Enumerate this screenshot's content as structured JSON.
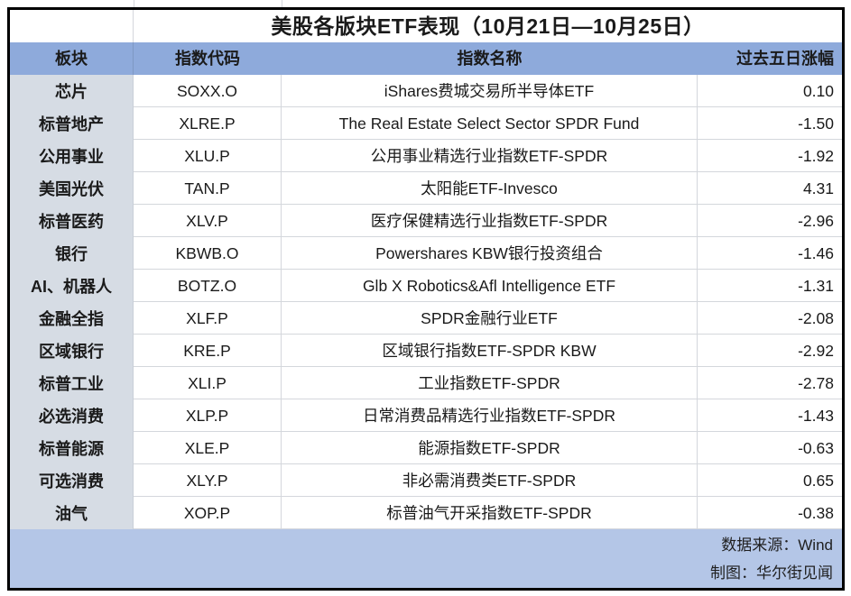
{
  "title": "美股各版块ETF表现（10月21日—10月25日）",
  "chart_data": {
    "type": "table",
    "title": "美股各版块ETF表现（10月21日—10月25日）",
    "columns": [
      "板块",
      "指数代码",
      "指数名称",
      "过去五日涨幅"
    ],
    "rows": [
      {
        "sector": "芯片",
        "code": "SOXX.O",
        "name": "iShares费城交易所半导体ETF",
        "change": "0.10"
      },
      {
        "sector": "标普地产",
        "code": "XLRE.P",
        "name": "The Real Estate Select Sector SPDR Fund",
        "change": "-1.50"
      },
      {
        "sector": "公用事业",
        "code": "XLU.P",
        "name": "公用事业精选行业指数ETF-SPDR",
        "change": "-1.92"
      },
      {
        "sector": "美国光伏",
        "code": "TAN.P",
        "name": "太阳能ETF-Invesco",
        "change": "4.31"
      },
      {
        "sector": "标普医药",
        "code": "XLV.P",
        "name": "医疗保健精选行业指数ETF-SPDR",
        "change": "-2.96"
      },
      {
        "sector": "银行",
        "code": "KBWB.O",
        "name": "Powershares KBW银行投资组合",
        "change": "-1.46"
      },
      {
        "sector": "AI、机器人",
        "code": "BOTZ.O",
        "name": "Glb X Robotics&Afl Intelligence ETF",
        "change": "-1.31"
      },
      {
        "sector": "金融全指",
        "code": "XLF.P",
        "name": "SPDR金融行业ETF",
        "change": "-2.08"
      },
      {
        "sector": "区域银行",
        "code": "KRE.P",
        "name": "区域银行指数ETF-SPDR KBW",
        "change": "-2.92"
      },
      {
        "sector": "标普工业",
        "code": "XLI.P",
        "name": "工业指数ETF-SPDR",
        "change": "-2.78"
      },
      {
        "sector": "必选消费",
        "code": "XLP.P",
        "name": "日常消费品精选行业指数ETF-SPDR",
        "change": "-1.43"
      },
      {
        "sector": "标普能源",
        "code": "XLE.P",
        "name": "能源指数ETF-SPDR",
        "change": "-0.63"
      },
      {
        "sector": "可选消费",
        "code": "XLY.P",
        "name": "非必需消费类ETF-SPDR",
        "change": "0.65"
      },
      {
        "sector": "油气",
        "code": "XOP.P",
        "name": "标普油气开采指数ETF-SPDR",
        "change": "-0.38"
      }
    ]
  },
  "footer": {
    "source": "数据来源：Wind",
    "credit": "制图：华尔街见闻"
  },
  "colors": {
    "header_bg": "#8EAADB",
    "footer_bg": "#B4C6E7",
    "sector_column_bg": "#D6DCE4",
    "gridline": "#D4D7DC",
    "outer_border": "#000000",
    "text": "#1A1A1A"
  }
}
